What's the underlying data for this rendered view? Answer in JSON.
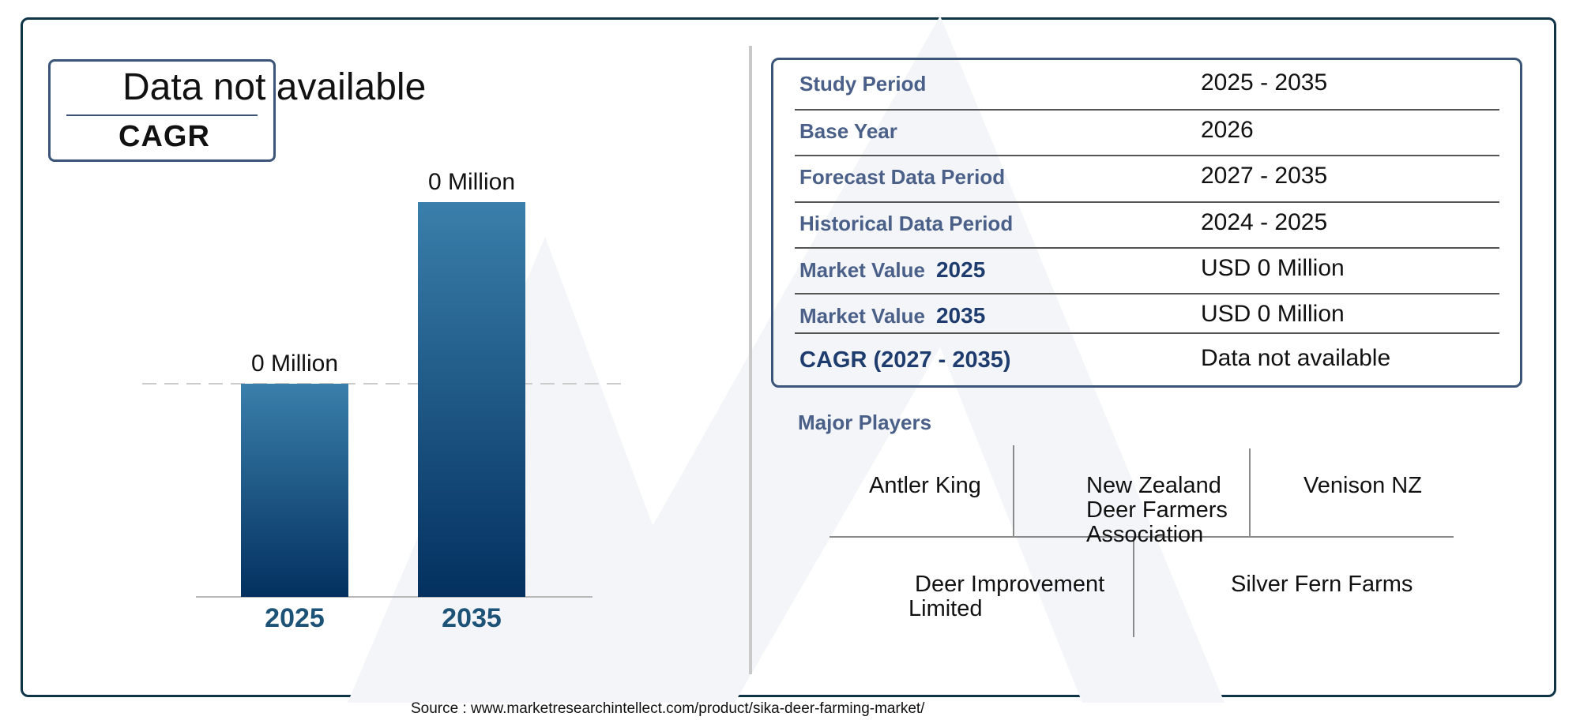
{
  "cagr_box": {
    "value": "Data not available",
    "label": "CAGR"
  },
  "chart_data": {
    "type": "bar",
    "categories": [
      "2025",
      "2035"
    ],
    "values": [
      0,
      0
    ],
    "data_labels": [
      "0 Million",
      "0 Million"
    ],
    "relative_heights": [
      0.54,
      1.0
    ],
    "title": "",
    "xlabel": "",
    "ylabel": "",
    "grid": false,
    "colors": {
      "bar_top_left": "#3a7fab",
      "bar_bottom_right": "#03305f",
      "tick": "#1d5377",
      "dashed": "#cccccc"
    }
  },
  "info_table": {
    "rows": [
      {
        "label": "Study Period",
        "value": "2025 - 2035"
      },
      {
        "label": "Base Year",
        "value": "2026"
      },
      {
        "label": "Forecast Data Period",
        "value": "2027 - 2035"
      },
      {
        "label": "Historical Data Period",
        "value": "2024 - 2025"
      },
      {
        "label": "Market Value",
        "year": "2025",
        "value": "USD 0 Million"
      },
      {
        "label": "Market Value",
        "year": "2035",
        "value": "USD 0 Million"
      },
      {
        "label": "CAGR (2027 - 2035)",
        "value": "Data not available"
      }
    ]
  },
  "players": {
    "title": "Major Players",
    "items": [
      "Antler King",
      "New Zealand\nDeer Farmers\nAssociation",
      "Venison NZ",
      "Deer Improvement\nLimited",
      "Silver Fern Farms"
    ]
  },
  "source": "Source : www.marketresearchintellect.com/product/sika-deer-farming-market/",
  "colors": {
    "frame": "#0f3447",
    "box_border": "#3a5577",
    "label_blue": "#4a6088"
  }
}
